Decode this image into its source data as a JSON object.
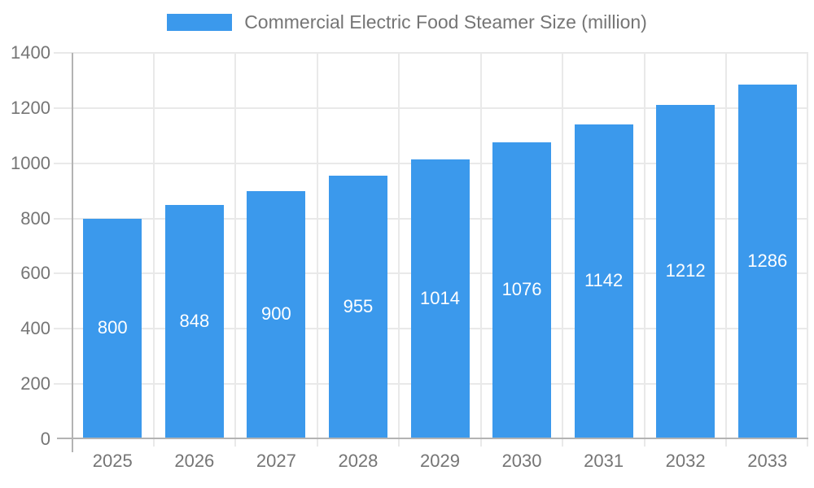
{
  "chart_data": {
    "type": "bar",
    "title": "Commercial Electric Food Steamer Size (million)",
    "categories": [
      "2025",
      "2026",
      "2027",
      "2028",
      "2029",
      "2030",
      "2031",
      "2032",
      "2033"
    ],
    "values": [
      800,
      848,
      900,
      955,
      1014,
      1076,
      1142,
      1212,
      1286
    ],
    "xlabel": "",
    "ylabel": "",
    "ylim": [
      0,
      1400
    ],
    "yticks": [
      0,
      200,
      400,
      600,
      800,
      1000,
      1200,
      1400
    ],
    "grid": true,
    "legend_position": "top",
    "bar_color": "#3B99EC",
    "value_label_color": "#FFFFFF",
    "axis_text_color": "#757575",
    "gridline_color": "#E9E9E9",
    "axis_line_color": "#B3B3B3",
    "background": "#FFFFFF"
  }
}
